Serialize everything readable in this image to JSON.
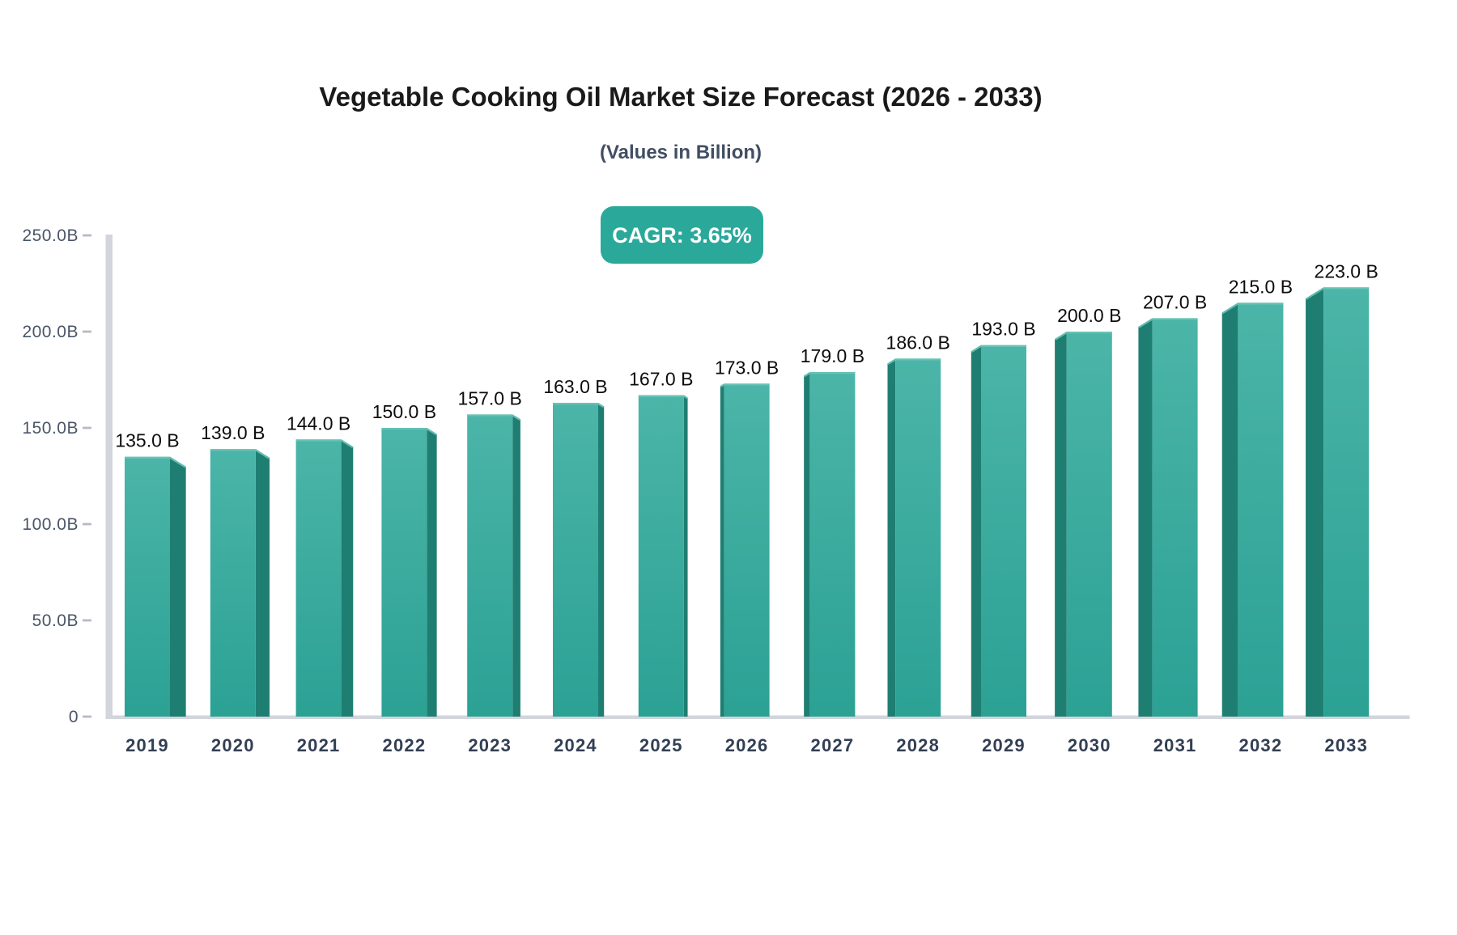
{
  "header": {
    "title": "Vegetable Cooking Oil Market Size Forecast (2026 - 2033)",
    "subtitle": "(Values in Billion)",
    "badge": "CAGR: 3.65%"
  },
  "chart_data": {
    "type": "bar",
    "title": "Vegetable Cooking Oil Market Size Forecast (2026 - 2033)",
    "subtitle": "(Values in Billion)",
    "cagr_percent": 3.65,
    "categories": [
      "2019",
      "2020",
      "2021",
      "2022",
      "2023",
      "2024",
      "2025",
      "2026",
      "2027",
      "2028",
      "2029",
      "2030",
      "2031",
      "2032",
      "2033"
    ],
    "values": [
      135,
      139,
      144,
      150,
      157,
      163,
      167,
      173,
      179,
      186,
      193,
      200,
      207,
      215,
      223
    ],
    "value_labels": [
      "135.0 B",
      "139.0 B",
      "144.0 B",
      "150.0 B",
      "157.0 B",
      "163.0 B",
      "167.0 B",
      "173.0 B",
      "179.0 B",
      "186.0 B",
      "193.0 B",
      "200.0 B",
      "207.0 B",
      "215.0 B",
      "223.0 B"
    ],
    "y_ticks": [
      {
        "value": 0,
        "label": "0"
      },
      {
        "value": 50,
        "label": "50.0B"
      },
      {
        "value": 100,
        "label": "100.0B"
      },
      {
        "value": 150,
        "label": "150.0B"
      },
      {
        "value": 200,
        "label": "200.0B"
      },
      {
        "value": 250,
        "label": "250.0B"
      }
    ],
    "ylim": [
      0,
      250
    ],
    "xlabel": "",
    "ylabel": "",
    "grid": false,
    "legend": false,
    "style": "3d-perspective-columns"
  },
  "colors": {
    "background": "#ffffff",
    "title_text": "#1a1a1a",
    "subtitle_text": "#414e63",
    "badge_bg": "#2aa99b",
    "badge_text": "#ffffff",
    "bar_face_top": "#4bb5a8",
    "bar_face_bottom": "#2ba194",
    "bar_side": "#1f7e72",
    "bar_edge_highlight": "#69c4b6",
    "axis_line": "#d3d5dc",
    "tick_dash": "#a9aeb8",
    "y_label_text": "#4a5568",
    "x_label_text": "#333f54",
    "value_label_text": "#0d0d0d"
  }
}
